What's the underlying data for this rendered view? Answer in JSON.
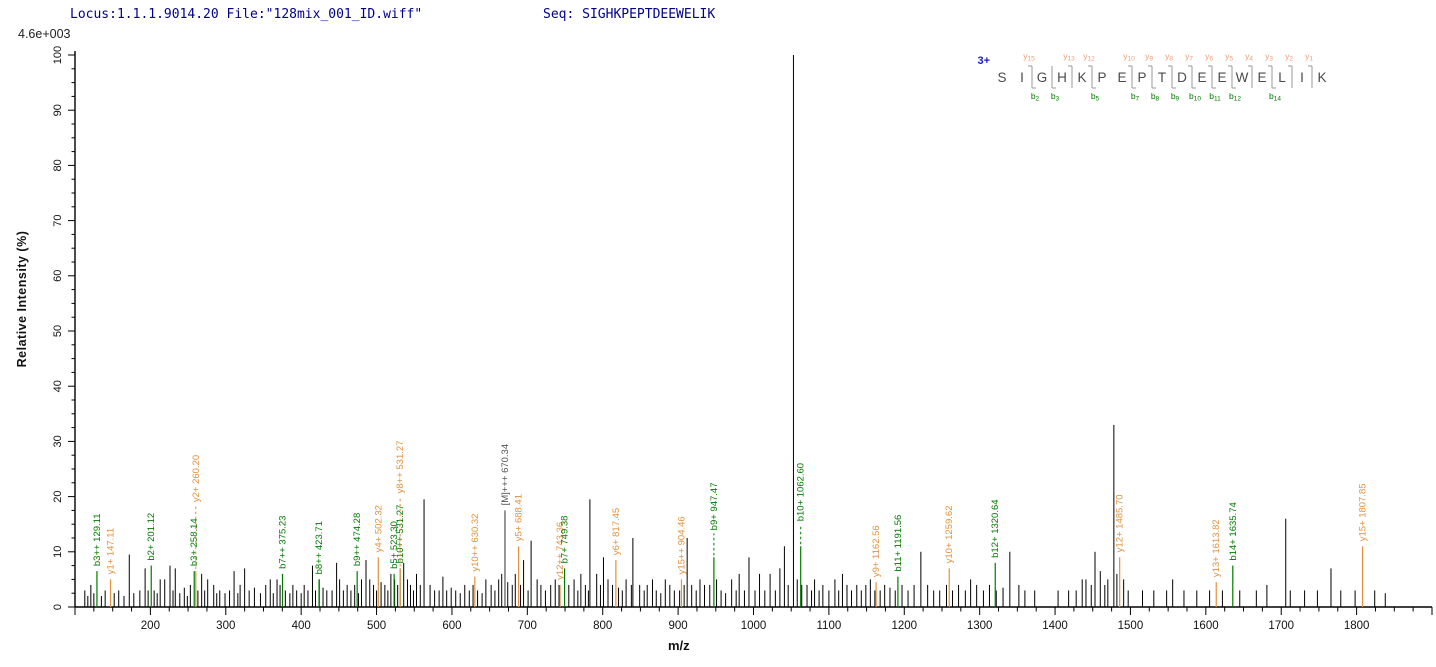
{
  "header": {
    "locus_file": "Locus:1.1.1.9014.20 File:\"128mix_001_ID.wiff\"",
    "seq_label": "Seq: SIGHKPEPTDEEWELIK",
    "max_intensity": "4.6e+003"
  },
  "peptide": {
    "charge": "3+",
    "sequence": [
      "S",
      "I",
      "G",
      "H",
      "K",
      "P",
      "E",
      "P",
      "T",
      "D",
      "E",
      "E",
      "W",
      "E",
      "L",
      "I",
      "K"
    ],
    "cuts": [
      {
        "gap": 2,
        "y": "y15",
        "b": "b2"
      },
      {
        "gap": 3,
        "b": "b3"
      },
      {
        "gap": 4,
        "y": "y13"
      },
      {
        "gap": 5,
        "y": "y12",
        "b": "b5"
      },
      {
        "gap": 7,
        "y": "y10",
        "b": "b7"
      },
      {
        "gap": 8,
        "y": "y9",
        "b": "b8"
      },
      {
        "gap": 9,
        "y": "y8",
        "b": "b9"
      },
      {
        "gap": 10,
        "y": "y7",
        "b": "b10"
      },
      {
        "gap": 11,
        "y": "y6",
        "b": "b11"
      },
      {
        "gap": 12,
        "y": "y5",
        "b": "b12"
      },
      {
        "gap": 13,
        "y": "y4"
      },
      {
        "gap": 14,
        "y": "y3",
        "b": "b14"
      },
      {
        "gap": 15,
        "y": "y2"
      },
      {
        "gap": 16,
        "y": "y1"
      }
    ]
  },
  "chart_data": {
    "type": "bar",
    "title": "MS/MS fragment spectrum of SIGHKPEPTDEEWELIK (3+)",
    "xlabel": "m/z",
    "ylabel": "Relative  Intensity (%)",
    "axes": {
      "x_range": [
        100,
        1900
      ],
      "y_range": [
        0,
        100
      ],
      "x_major_step": 100,
      "x_minor_step": 25,
      "x_label_min": 200,
      "x_label_max": 1800,
      "y_major_step": 10,
      "y_minor_step": 2.5
    },
    "colors": {
      "b_ion": "#007a00",
      "y_ion": "#e2913d",
      "y_seq": "#f09c78",
      "precursor": "#555555",
      "peak": "#000000",
      "cut_mark": "#999999",
      "charge": "#1a1acd",
      "seq_letter": "#4a4a4a"
    },
    "labeled_peaks": [
      {
        "text": "b3++ 129.11",
        "mz": 129.11,
        "h": 6.5,
        "type": "b",
        "lift": 0
      },
      {
        "text": "y1+ 147.11",
        "mz": 147.11,
        "h": 5,
        "type": "y",
        "lift": 0
      },
      {
        "text": "b2+ 201.12",
        "mz": 201.12,
        "h": 7.5,
        "type": "b",
        "lift": 0
      },
      {
        "text": "b3+ 258.14",
        "mz": 258.14,
        "h": 6.5,
        "type": "b",
        "lift": 0
      },
      {
        "text": "y2+ 260.20",
        "mz": 260.2,
        "h": 6.5,
        "type": "y",
        "lift": 64
      },
      {
        "text": "b7++ 375.23",
        "mz": 375.23,
        "h": 6,
        "type": "b",
        "lift": 0
      },
      {
        "text": "b8++ 423.71",
        "mz": 423.71,
        "h": 5,
        "type": "b",
        "lift": 0
      },
      {
        "text": "b9++ 474.28",
        "mz": 474.28,
        "h": 6.5,
        "type": "b",
        "lift": 0
      },
      {
        "text": "y4+ 502.32",
        "mz": 502.32,
        "h": 9,
        "type": "y",
        "lift": 0
      },
      {
        "text": "b5+ 523.30",
        "mz": 523.3,
        "h": 6,
        "type": "b",
        "lift": 0
      },
      {
        "text": "b10++ 531.27",
        "mz": 531.27,
        "h": 7,
        "type": "b",
        "lift": 0
      },
      {
        "text": "y8++ 531.27",
        "mz": 531.27,
        "h": 7,
        "type": "y",
        "lift": 70
      },
      {
        "text": "y10++ 630.32",
        "mz": 630.32,
        "h": 5.5,
        "type": "y",
        "lift": 0
      },
      {
        "text": "[M]+++ 670.34",
        "mz": 670.34,
        "h": 17.5,
        "type": "M",
        "lift": 0
      },
      {
        "text": "y5+ 688.41",
        "mz": 688.41,
        "h": 11,
        "type": "y",
        "lift": 0
      },
      {
        "text": "y12++ 743.36",
        "mz": 743.36,
        "h": 4,
        "type": "y",
        "lift": 0
      },
      {
        "text": "b7+ 749.38",
        "mz": 749.38,
        "h": 7,
        "type": "b",
        "lift": 0
      },
      {
        "text": "y6+ 817.45",
        "mz": 817.45,
        "h": 8.5,
        "type": "y",
        "lift": 0
      },
      {
        "text": "y15++ 904.46",
        "mz": 904.46,
        "h": 5,
        "type": "y",
        "lift": 0
      },
      {
        "text": "b9+ 947.47",
        "mz": 947.47,
        "h": 9,
        "type": "b",
        "lift": 22
      },
      {
        "text": "b10+ 1062.60",
        "mz": 1062.6,
        "h": 11,
        "type": "b",
        "lift": 20
      },
      {
        "text": "y9+ 1162.56",
        "mz": 1162.56,
        "h": 4.5,
        "type": "y",
        "lift": 0
      },
      {
        "text": "b11+ 1191.56",
        "mz": 1191.56,
        "h": 5.5,
        "type": "b",
        "lift": 0
      },
      {
        "text": "y10+ 1259.62",
        "mz": 1259.62,
        "h": 7,
        "type": "y",
        "lift": 0
      },
      {
        "text": "b12+ 1320.64",
        "mz": 1320.64,
        "h": 8,
        "type": "b",
        "lift": 0
      },
      {
        "text": "y12+ 1485.70",
        "mz": 1485.7,
        "h": 9,
        "type": "y",
        "lift": 0
      },
      {
        "text": "y13+ 1613.82",
        "mz": 1613.82,
        "h": 4.5,
        "type": "y",
        "lift": 0
      },
      {
        "text": "b14+ 1635.74",
        "mz": 1635.74,
        "h": 7.5,
        "type": "b",
        "lift": 0
      },
      {
        "text": "y15+ 1807.85",
        "mz": 1807.85,
        "h": 11,
        "type": "y",
        "lift": 0
      }
    ],
    "background_peaks": [
      [
        113,
        3
      ],
      [
        117,
        2
      ],
      [
        121,
        4
      ],
      [
        125,
        2.5
      ],
      [
        135,
        2
      ],
      [
        140,
        3
      ],
      [
        152,
        2.5
      ],
      [
        158,
        3
      ],
      [
        165,
        2
      ],
      [
        172,
        9.5
      ],
      [
        178,
        2.5
      ],
      [
        186,
        3
      ],
      [
        193,
        7
      ],
      [
        197,
        3
      ],
      [
        205,
        3
      ],
      [
        209,
        2.5
      ],
      [
        213,
        5
      ],
      [
        219,
        5
      ],
      [
        226,
        7.5
      ],
      [
        230,
        3
      ],
      [
        233,
        7
      ],
      [
        239,
        2.5
      ],
      [
        245,
        3.5
      ],
      [
        249,
        2
      ],
      [
        253,
        4
      ],
      [
        263,
        3
      ],
      [
        268,
        6
      ],
      [
        272,
        3
      ],
      [
        276,
        5
      ],
      [
        284,
        4
      ],
      [
        288,
        2.5
      ],
      [
        292,
        3
      ],
      [
        299,
        2.5
      ],
      [
        305,
        3
      ],
      [
        311,
        6.5
      ],
      [
        316,
        2.5
      ],
      [
        319,
        4
      ],
      [
        325,
        7
      ],
      [
        331,
        3
      ],
      [
        338,
        3.5
      ],
      [
        346,
        2.5
      ],
      [
        353,
        4
      ],
      [
        359,
        5
      ],
      [
        363,
        2.5
      ],
      [
        368,
        5
      ],
      [
        372,
        4
      ],
      [
        379,
        3
      ],
      [
        385,
        2.5
      ],
      [
        389,
        4
      ],
      [
        394,
        3
      ],
      [
        400,
        2.5
      ],
      [
        404,
        4
      ],
      [
        409,
        3
      ],
      [
        415,
        7.5
      ],
      [
        419,
        3
      ],
      [
        424,
        5
      ],
      [
        429,
        3.5
      ],
      [
        434,
        3
      ],
      [
        441,
        3
      ],
      [
        447,
        8
      ],
      [
        451,
        5
      ],
      [
        456,
        3
      ],
      [
        461,
        4
      ],
      [
        466,
        3
      ],
      [
        471,
        4
      ],
      [
        476,
        2.5
      ],
      [
        480,
        5
      ],
      [
        486,
        8.5
      ],
      [
        491,
        5
      ],
      [
        496,
        4
      ],
      [
        500,
        3
      ],
      [
        506,
        4.5
      ],
      [
        511,
        4
      ],
      [
        515,
        3
      ],
      [
        519,
        6
      ],
      [
        524,
        5
      ],
      [
        528,
        4
      ],
      [
        536,
        8
      ],
      [
        541,
        5
      ],
      [
        545,
        4
      ],
      [
        549,
        3
      ],
      [
        553,
        6
      ],
      [
        558,
        4
      ],
      [
        563,
        19.5
      ],
      [
        571,
        4
      ],
      [
        577,
        3
      ],
      [
        583,
        3
      ],
      [
        588,
        5.5
      ],
      [
        593,
        3
      ],
      [
        599,
        3.5
      ],
      [
        605,
        3
      ],
      [
        611,
        2.5
      ],
      [
        617,
        4
      ],
      [
        623,
        3
      ],
      [
        628,
        4
      ],
      [
        634,
        3
      ],
      [
        640,
        2.5
      ],
      [
        645,
        5
      ],
      [
        652,
        4
      ],
      [
        657,
        3
      ],
      [
        662,
        5
      ],
      [
        666,
        6
      ],
      [
        674,
        4.5
      ],
      [
        680,
        4
      ],
      [
        684,
        6
      ],
      [
        691,
        4
      ],
      [
        695,
        8.5
      ],
      [
        701,
        3
      ],
      [
        705,
        12
      ],
      [
        713,
        5
      ],
      [
        718,
        4
      ],
      [
        724,
        3
      ],
      [
        731,
        4
      ],
      [
        737,
        5
      ],
      [
        742,
        4
      ],
      [
        755,
        4
      ],
      [
        762,
        5
      ],
      [
        767,
        3
      ],
      [
        771,
        6
      ],
      [
        777,
        4
      ],
      [
        781,
        3
      ],
      [
        783,
        19.5
      ],
      [
        792,
        6
      ],
      [
        797,
        4
      ],
      [
        801,
        9
      ],
      [
        807,
        5
      ],
      [
        813,
        4
      ],
      [
        821,
        3.5
      ],
      [
        826,
        3
      ],
      [
        831,
        5
      ],
      [
        838,
        4
      ],
      [
        840,
        12.5
      ],
      [
        849,
        4
      ],
      [
        855,
        3
      ],
      [
        859,
        4
      ],
      [
        866,
        5
      ],
      [
        871,
        3
      ],
      [
        877,
        2.5
      ],
      [
        883,
        5
      ],
      [
        889,
        4
      ],
      [
        895,
        3
      ],
      [
        902,
        3
      ],
      [
        908,
        4
      ],
      [
        912,
        12.5
      ],
      [
        918,
        4
      ],
      [
        924,
        3
      ],
      [
        929,
        5
      ],
      [
        935,
        4
      ],
      [
        942,
        4
      ],
      [
        951,
        5
      ],
      [
        957,
        3
      ],
      [
        963,
        2.5
      ],
      [
        971,
        5
      ],
      [
        977,
        3
      ],
      [
        981,
        6
      ],
      [
        988,
        3
      ],
      [
        994,
        9
      ],
      [
        1002,
        3
      ],
      [
        1008,
        6
      ],
      [
        1015,
        3
      ],
      [
        1022,
        6
      ],
      [
        1029,
        3
      ],
      [
        1035,
        7
      ],
      [
        1041,
        11
      ],
      [
        1046,
        4
      ],
      [
        1053,
        100
      ],
      [
        1058,
        5
      ],
      [
        1064,
        4
      ],
      [
        1071,
        4
      ],
      [
        1077,
        3
      ],
      [
        1081,
        5
      ],
      [
        1087,
        3
      ],
      [
        1092,
        4
      ],
      [
        1100,
        3
      ],
      [
        1108,
        5
      ],
      [
        1113,
        3
      ],
      [
        1118,
        6
      ],
      [
        1124,
        4
      ],
      [
        1130,
        3
      ],
      [
        1137,
        4
      ],
      [
        1143,
        3
      ],
      [
        1149,
        4
      ],
      [
        1155,
        5
      ],
      [
        1161,
        3
      ],
      [
        1168,
        3
      ],
      [
        1174,
        4
      ],
      [
        1181,
        3.5
      ],
      [
        1188,
        3
      ],
      [
        1197,
        4
      ],
      [
        1205,
        3
      ],
      [
        1213,
        4
      ],
      [
        1222,
        10
      ],
      [
        1231,
        4
      ],
      [
        1239,
        3
      ],
      [
        1247,
        3
      ],
      [
        1256,
        4
      ],
      [
        1264,
        3
      ],
      [
        1272,
        4
      ],
      [
        1281,
        3
      ],
      [
        1288,
        5
      ],
      [
        1296,
        4
      ],
      [
        1305,
        3
      ],
      [
        1313,
        4
      ],
      [
        1322,
        3
      ],
      [
        1331,
        3.5
      ],
      [
        1340,
        10
      ],
      [
        1352,
        4
      ],
      [
        1360,
        3
      ],
      [
        1373,
        3
      ],
      [
        1404,
        3
      ],
      [
        1418,
        3
      ],
      [
        1428,
        3
      ],
      [
        1436,
        5
      ],
      [
        1441,
        5
      ],
      [
        1448,
        4
      ],
      [
        1453,
        10
      ],
      [
        1460,
        6.5
      ],
      [
        1466,
        4
      ],
      [
        1470,
        5
      ],
      [
        1478,
        33
      ],
      [
        1482,
        6
      ],
      [
        1491,
        5
      ],
      [
        1497,
        3
      ],
      [
        1516,
        3
      ],
      [
        1531,
        3
      ],
      [
        1548,
        3
      ],
      [
        1556,
        5
      ],
      [
        1571,
        3
      ],
      [
        1588,
        3
      ],
      [
        1605,
        3
      ],
      [
        1622,
        3
      ],
      [
        1645,
        3
      ],
      [
        1667,
        3
      ],
      [
        1681,
        4
      ],
      [
        1706,
        16
      ],
      [
        1712,
        3
      ],
      [
        1731,
        3
      ],
      [
        1748,
        3
      ],
      [
        1766,
        7
      ],
      [
        1779,
        3
      ],
      [
        1798,
        3
      ],
      [
        1824,
        3
      ],
      [
        1838,
        2.5
      ]
    ]
  }
}
